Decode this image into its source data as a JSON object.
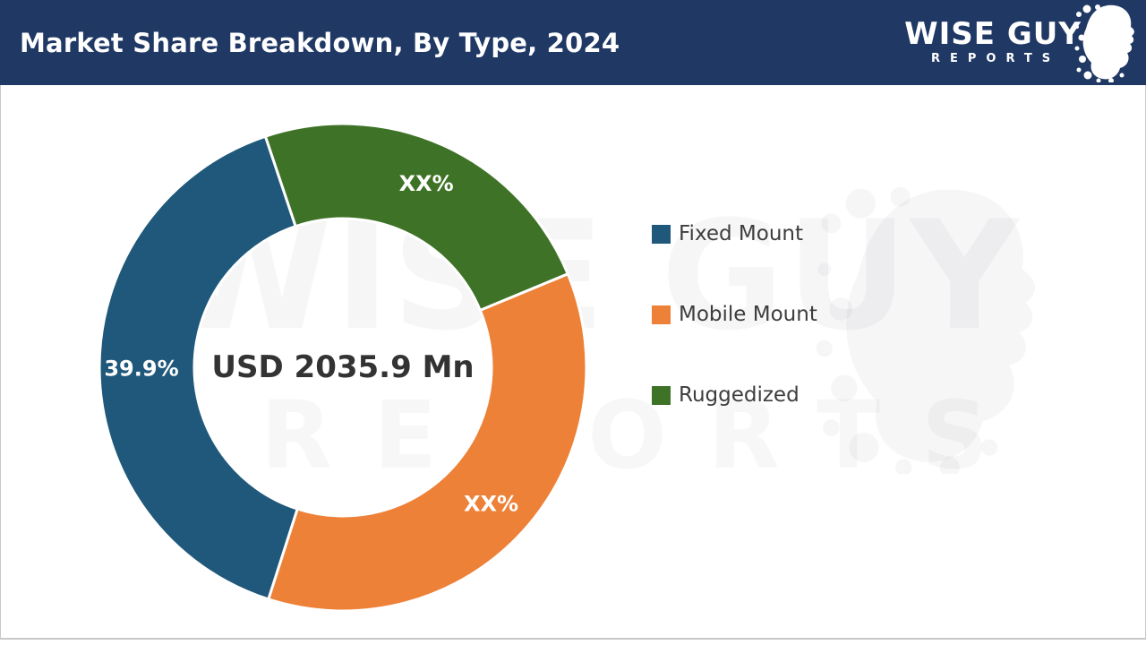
{
  "header": {
    "title": "Market Share Breakdown, By Type, 2024",
    "bg_color": "#1f3864",
    "logo": {
      "line1": "WISE GUY",
      "line2": "REPORTS"
    }
  },
  "watermark": {
    "line1": "WISE GUY",
    "line2": "REPORTS"
  },
  "chart_data": {
    "type": "donut",
    "title": "Market Share Breakdown, By Type, 2024",
    "center_label": "USD 2035.9 Mn",
    "start_angle_deg": 197.8,
    "outer_radius": 272,
    "inner_radius": 166,
    "label_radius": 225,
    "slice_gap_color": "#ffffff",
    "slices": [
      {
        "name": "Fixed Mount",
        "label": "39.9%",
        "value_pct": 39.9,
        "color": "#1f587a"
      },
      {
        "name": "Ruggedized",
        "label": "XX%",
        "value_pct": 23.9,
        "color": "#3e7226"
      },
      {
        "name": "Mobile Mount",
        "label": "XX%",
        "value_pct": 36.2,
        "color": "#ee8138"
      }
    ],
    "legend_position": "right",
    "legend": [
      {
        "label": "Fixed Mount",
        "color": "#1f587a"
      },
      {
        "label": "Mobile Mount",
        "color": "#ee8138"
      },
      {
        "label": "Ruggedized",
        "color": "#3e7226"
      }
    ]
  }
}
